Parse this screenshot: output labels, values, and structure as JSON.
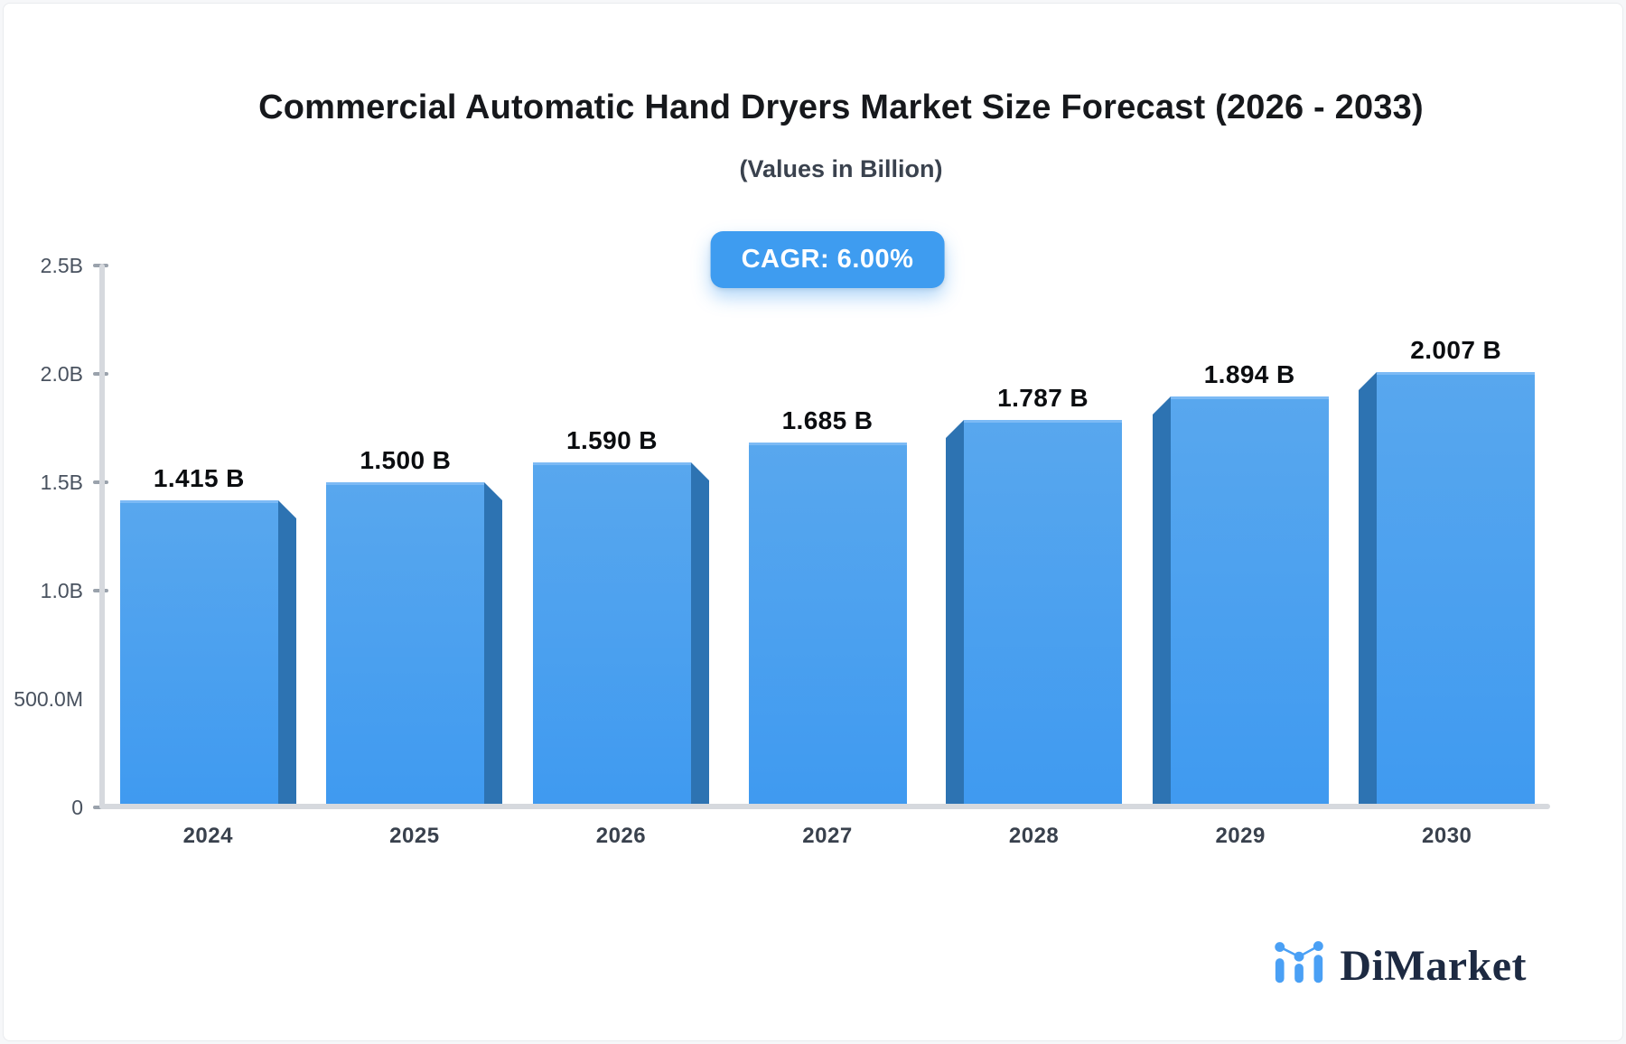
{
  "chart_data": {
    "type": "bar",
    "title": "Commercial Automatic Hand Dryers Market Size Forecast (2026 - 2033)",
    "subtitle": "(Values in Billion)",
    "cagr_label": "CAGR: 6.00%",
    "categories": [
      "2024",
      "2025",
      "2026",
      "2027",
      "2028",
      "2029",
      "2030"
    ],
    "values": [
      1.415,
      1.5,
      1.59,
      1.685,
      1.787,
      1.894,
      2.007
    ],
    "value_labels": [
      "1.415 B",
      "1.500 B",
      "1.590 B",
      "1.685 B",
      "1.787 B",
      "1.894 B",
      "2.007 B"
    ],
    "xlabel": "",
    "ylabel": "",
    "ylim": [
      0,
      2.5
    ],
    "y_ticks": [
      {
        "label": "2.5B",
        "value": 2.5,
        "dash": true
      },
      {
        "label": "2.0B",
        "value": 2.0,
        "dash": true
      },
      {
        "label": "1.5B",
        "value": 1.5,
        "dash": true
      },
      {
        "label": "1.0B",
        "value": 1.0,
        "dash": true
      },
      {
        "label": "500.0M",
        "value": 0.5,
        "dash": false
      },
      {
        "label": "0",
        "value": 0,
        "dash": true
      }
    ],
    "grid": false,
    "legend": "none",
    "bar_style": "3d-extruded, side face toward chart center"
  },
  "colors": {
    "accent": "#3e9cf0",
    "badge_text": "#ffffff",
    "bar_face_top": "#58a7ee",
    "bar_face_bottom": "#3f9af0",
    "bar_side": "#2d73b2",
    "axis_line": "#d6d9de",
    "tick_dash": "#9aa2ac",
    "tick_text": "#49525f",
    "category_text": "#39414d",
    "value_text": "#0b0d10",
    "title_text": "#16181c",
    "subtitle_text": "#3a424e",
    "logo_navy": "#1d2a42",
    "logo_blue": "#4aa0f5",
    "card_bg": "#ffffff",
    "page_bg": "#f6f7f9"
  },
  "brand": {
    "name": "DiMarket",
    "icon": "bar-line-chart-icon"
  }
}
